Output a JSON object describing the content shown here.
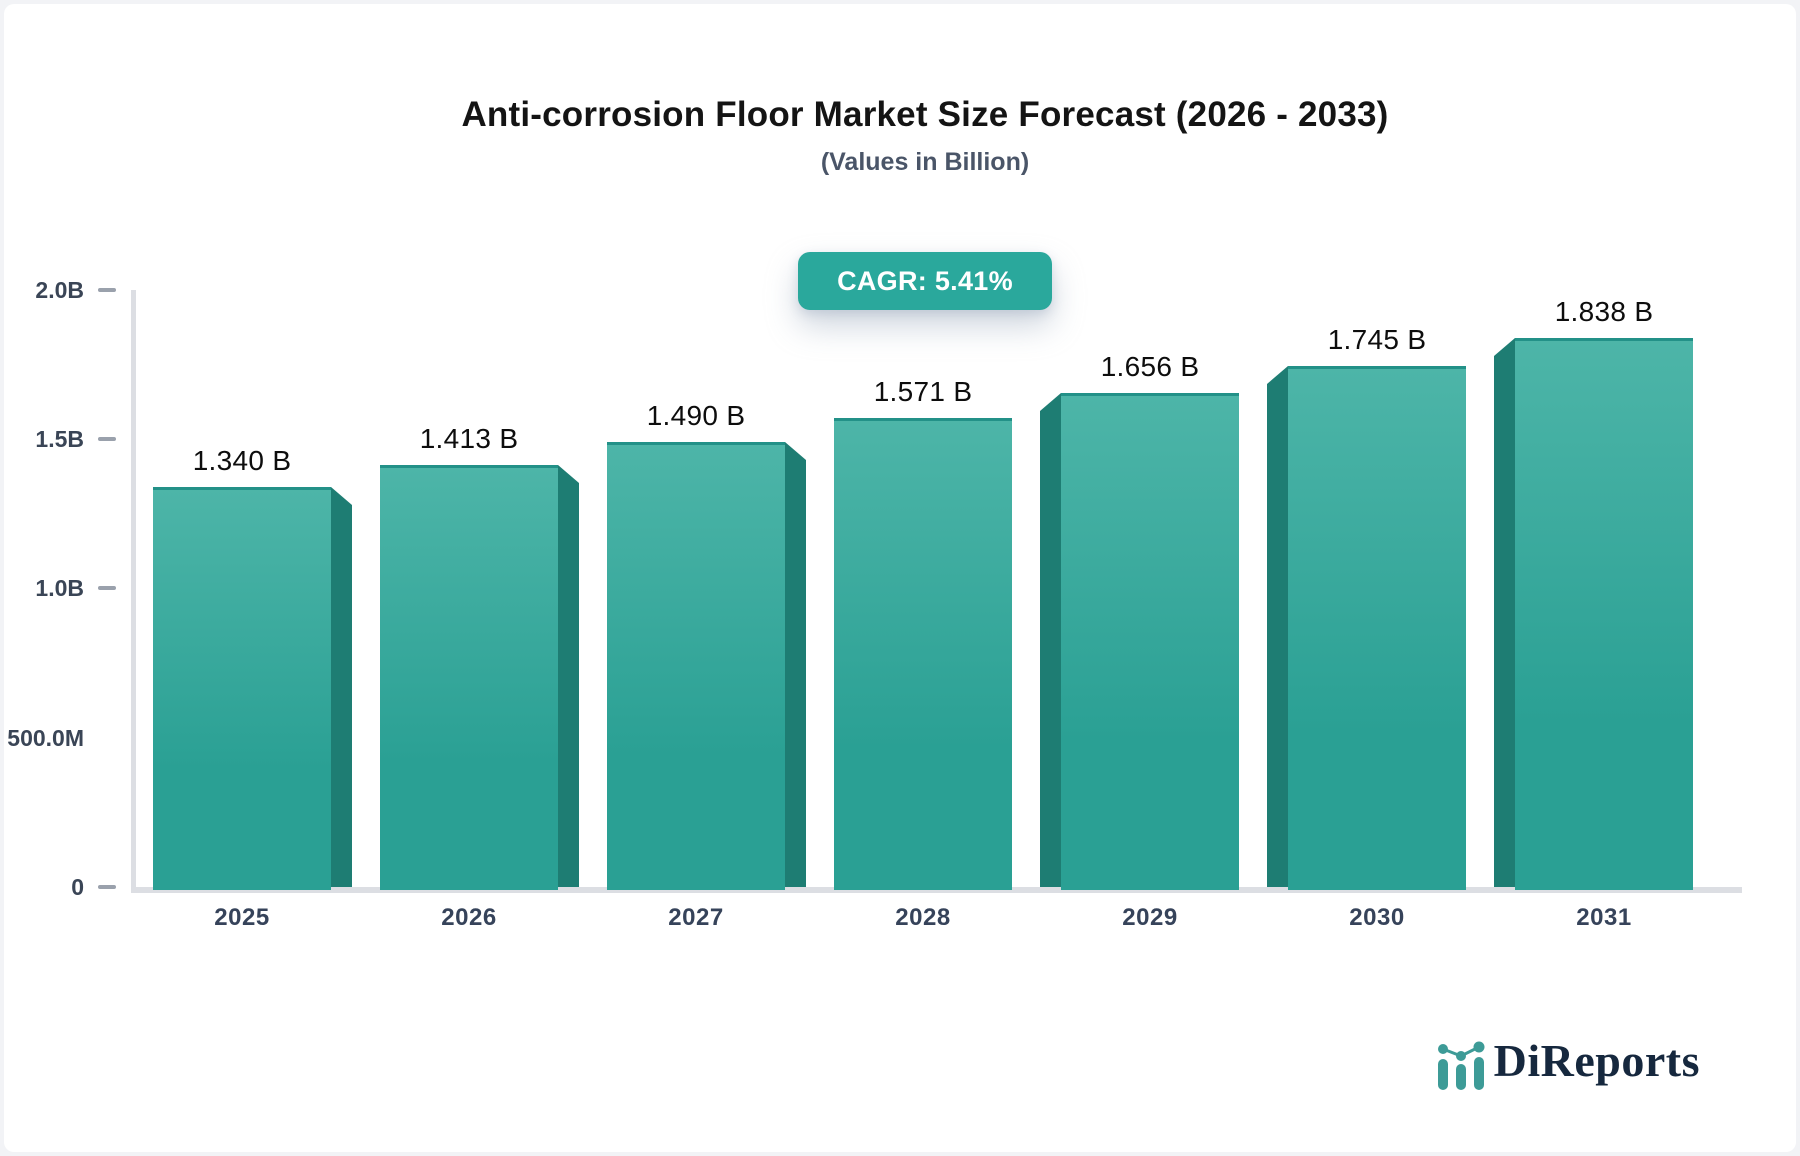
{
  "chart_data": {
    "type": "bar",
    "title": "Anti-corrosion Floor Market Size Forecast (2026 - 2033)",
    "subtitle": "(Values in Billion)",
    "cagr_label": "CAGR: 5.41%",
    "categories": [
      "2025",
      "2026",
      "2027",
      "2028",
      "2029",
      "2030",
      "2031"
    ],
    "values": [
      1.34,
      1.413,
      1.49,
      1.571,
      1.656,
      1.745,
      1.838
    ],
    "value_labels": [
      "1.340 B",
      "1.413 B",
      "1.490 B",
      "1.571 B",
      "1.656 B",
      "1.745 B",
      "1.838 B"
    ],
    "unit": "Billion",
    "ylim": [
      0,
      2.0
    ],
    "yticks": [
      {
        "label": "2.0B",
        "value": 2.0,
        "dash": true
      },
      {
        "label": "1.5B",
        "value": 1.5,
        "dash": true
      },
      {
        "label": "1.0B",
        "value": 1.0,
        "dash": true
      },
      {
        "label": "500.0M",
        "value": 0.5,
        "dash": false
      },
      {
        "label": "0",
        "value": 0,
        "dash": true
      }
    ],
    "grid": false,
    "legend": false,
    "bar_color_top": "#4db5a8",
    "bar_color_bottom": "#2aa094",
    "bar_side_color": "#1e7d73",
    "bar_top_edge_color": "#239188",
    "badge_background": "#2aa89c",
    "badge_text_color": "#ffffff"
  },
  "logo": {
    "text": "DiReports",
    "icon": "mini-bar-chart-icon",
    "text_color": "#16283e",
    "accent": "#3d9b97"
  }
}
